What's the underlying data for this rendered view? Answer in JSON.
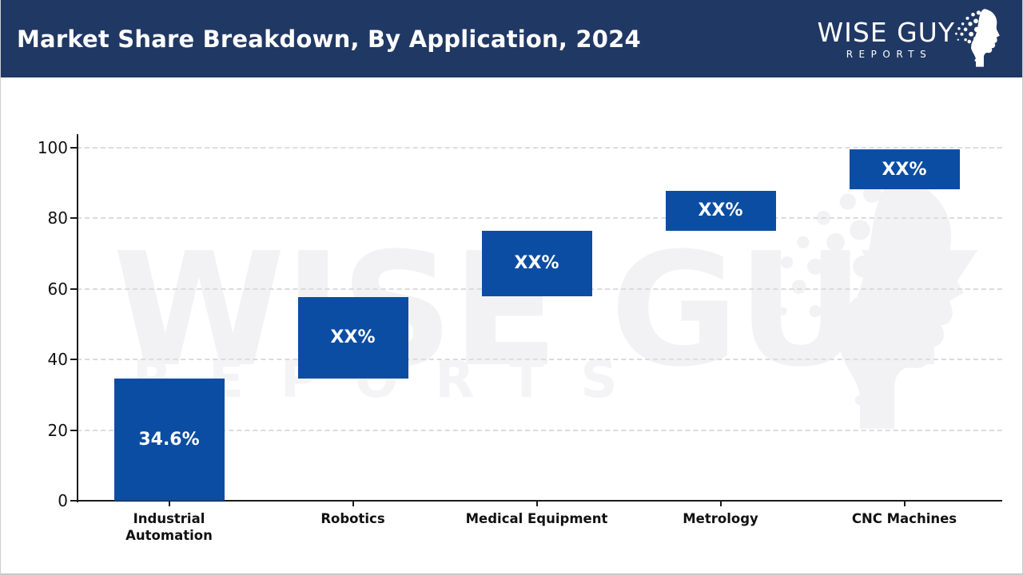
{
  "header": {
    "title": "Market Share Breakdown, By Application, 2024",
    "bg_color": "#203864",
    "logo": {
      "line1": "WISE GUY",
      "line2": "REPORTS"
    }
  },
  "watermark": {
    "line1": "WISE GUY",
    "line2": "REPORTS"
  },
  "chart_data": {
    "type": "bar",
    "subtype": "waterfall",
    "title": "Market Share Breakdown, By Application, 2024",
    "categories": [
      "Industrial Automation",
      "Robotics",
      "Medical Equipment",
      "Metrology",
      "CNC Machines"
    ],
    "bars": [
      {
        "category": "Industrial Automation",
        "label_lines": [
          "Industrial",
          "Automation"
        ],
        "start": 0,
        "end": 34.6,
        "value_label": "34.6%"
      },
      {
        "category": "Robotics",
        "label_lines": [
          "Robotics"
        ],
        "start": 34.7,
        "end": 57.7,
        "value_label": "XX%"
      },
      {
        "category": "Medical Equipment",
        "label_lines": [
          "Medical Equipment"
        ],
        "start": 57.9,
        "end": 76.5,
        "value_label": "XX%"
      },
      {
        "category": "Metrology",
        "label_lines": [
          "Metrology"
        ],
        "start": 76.5,
        "end": 87.8,
        "value_label": "XX%"
      },
      {
        "category": "CNC Machines",
        "label_lines": [
          "CNC Machines"
        ],
        "start": 88.2,
        "end": 99.5,
        "value_label": "XX%"
      }
    ],
    "xlabel": "",
    "ylabel": "",
    "ylim": [
      0,
      105
    ],
    "yticks": [
      0,
      20,
      40,
      60,
      80,
      100
    ],
    "grid": "horizontal-dashed",
    "grid_color": "#dcdcdc",
    "bar_color": "#0b4da2",
    "value_label_color": "#ffffff",
    "legend": "none"
  }
}
